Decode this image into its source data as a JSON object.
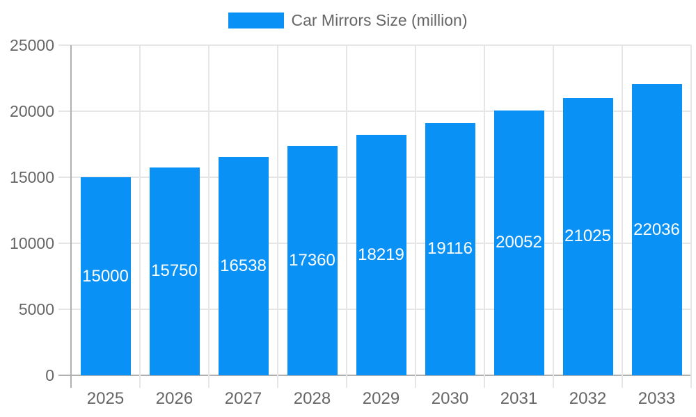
{
  "chart_data": {
    "type": "bar",
    "title": "",
    "legend": {
      "label": "Car Mirrors Size (million)",
      "position": "top"
    },
    "categories": [
      "2025",
      "2026",
      "2027",
      "2028",
      "2029",
      "2030",
      "2031",
      "2032",
      "2033"
    ],
    "series": [
      {
        "name": "Car Mirrors Size (million)",
        "values": [
          15000,
          15750,
          16538,
          17360,
          18219,
          19116,
          20052,
          21025,
          22036
        ]
      }
    ],
    "bar_value_labels": [
      "15000",
      "15750",
      "16538",
      "17360",
      "18219",
      "19116",
      "20052",
      "21025",
      "22036"
    ],
    "xlabel": "",
    "ylabel": "",
    "ylim": [
      0,
      25000
    ],
    "ytick_step": 5000,
    "ytick_labels": [
      "0",
      "5000",
      "10000",
      "15000",
      "20000",
      "25000"
    ],
    "grid": "both",
    "value_labels_inside_bars": true,
    "colors": {
      "bar": "#0a91f5",
      "bar_value_text": "#ffffff",
      "axis_text": "#666666",
      "gridline": "#e6e6e6",
      "axis_line": "#b0b0b0",
      "background": "#ffffff"
    }
  }
}
